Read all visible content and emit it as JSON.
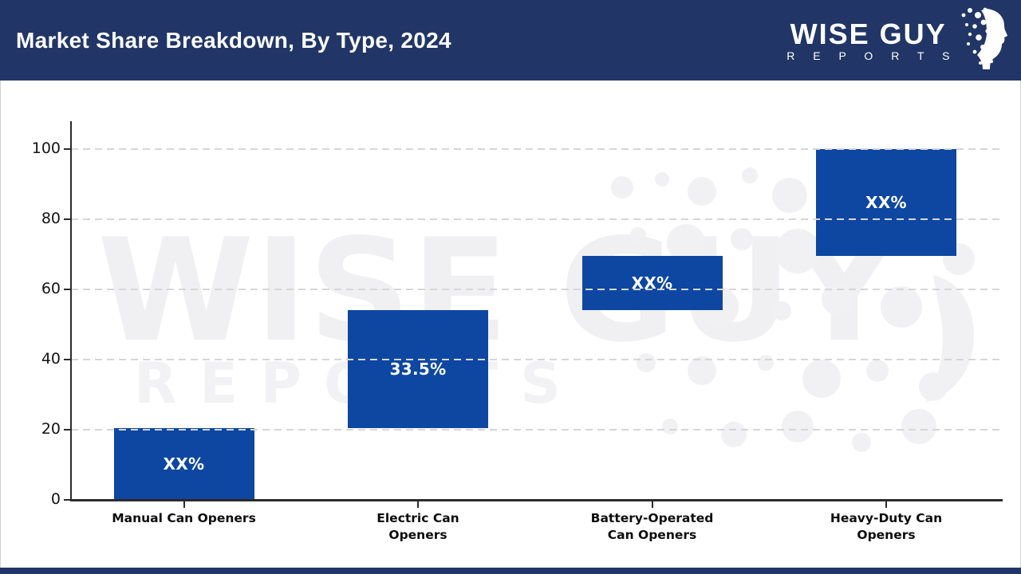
{
  "header": {
    "title": "Market Share Breakdown, By Type, 2024",
    "logo": {
      "line1": "WISE GUY",
      "line2": "R E P O R T S",
      "face_icon": "dot-face-profile"
    }
  },
  "watermark": {
    "line1": "WISE GUY",
    "line2": "R E P O R T S"
  },
  "colors": {
    "header_bg": "#213666",
    "footer_bg": "#213666",
    "bar": "#0d47a1",
    "bar_label_text": "#ffffff",
    "grid": "#d6d6d6",
    "axis": "#2b2b2b",
    "tick_text": "#141414",
    "watermark": "#f0f0f2"
  },
  "chart_data": {
    "type": "bar",
    "subtype": "waterfall",
    "title": "Market Share Breakdown, By Type, 2024",
    "categories": [
      "Manual Can Openers",
      "Electric Can Openers",
      "Battery-Operated Can Openers",
      "Heavy-Duty Can Openers"
    ],
    "category_label_lines": [
      [
        "Manual Can Openers"
      ],
      [
        "Electric Can",
        "Openers"
      ],
      [
        "Battery-Operated",
        "Can Openers"
      ],
      [
        "Heavy-Duty Can",
        "Openers"
      ]
    ],
    "segments": [
      {
        "category": "Manual Can Openers",
        "start": 0,
        "end": 20.5,
        "value_label": "XX%"
      },
      {
        "category": "Electric Can Openers",
        "start": 20.5,
        "end": 54,
        "value": 33.5,
        "value_label": "33.5%"
      },
      {
        "category": "Battery-Operated Can Openers",
        "start": 54,
        "end": 69.5,
        "value_label": "XX%"
      },
      {
        "category": "Heavy-Duty Can Openers",
        "start": 69.5,
        "end": 100,
        "value_label": "XX%"
      }
    ],
    "ylim": [
      0,
      100
    ],
    "yticks": [
      0,
      20,
      40,
      60,
      80,
      100
    ],
    "xlabel": "",
    "ylabel": "",
    "grid": "horizontal-dashed-over-bars",
    "legend": "none"
  }
}
